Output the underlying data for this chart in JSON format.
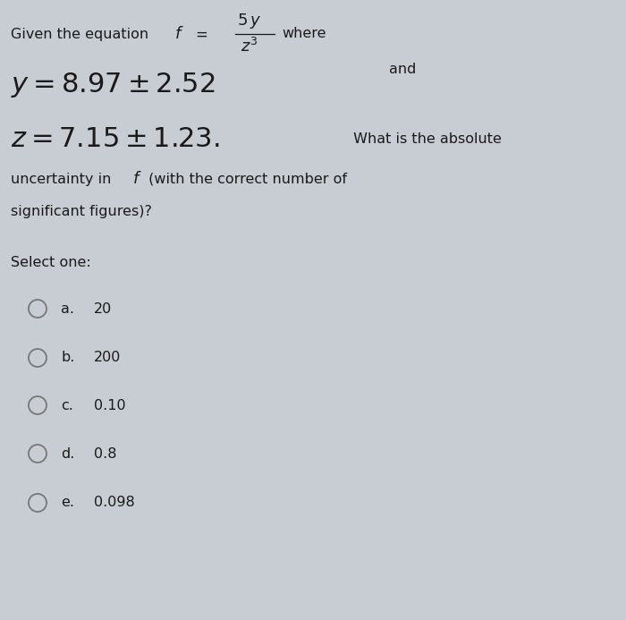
{
  "bg_color": "#c8cdd4",
  "text_color": "#1a1a1a",
  "figsize": [
    7.0,
    6.93
  ],
  "dpi": 100,
  "options": [
    {
      "label": "a.",
      "value": "20"
    },
    {
      "label": "b.",
      "value": "200"
    },
    {
      "label": "c.",
      "value": "0.10"
    },
    {
      "label": "d.",
      "value": "0.8"
    },
    {
      "label": "e.",
      "value": "0.098"
    }
  ]
}
